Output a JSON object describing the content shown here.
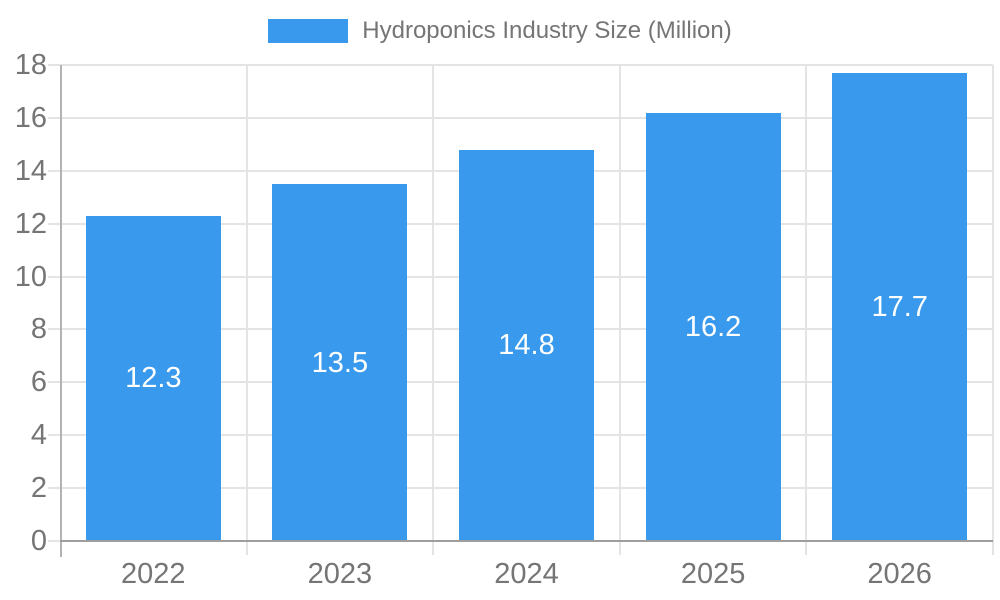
{
  "legend": {
    "series_label": "Hydroponics Industry Size (Million)"
  },
  "chart_data": {
    "type": "bar",
    "title": "",
    "series_name": "Hydroponics Industry Size (Million)",
    "categories": [
      "2022",
      "2023",
      "2024",
      "2025",
      "2026"
    ],
    "values": [
      12.3,
      13.5,
      14.8,
      16.2,
      17.7
    ],
    "value_labels": [
      "12.3",
      "13.5",
      "14.8",
      "16.2",
      "17.7"
    ],
    "xlabel": "",
    "ylabel": "",
    "ylim": [
      0,
      18
    ],
    "ytick_step": 2,
    "yticks": [
      0,
      2,
      4,
      6,
      8,
      10,
      12,
      14,
      16,
      18
    ],
    "grid": true,
    "legend_position": "top-center",
    "colors": {
      "bar": "#3999ED",
      "value_label": "#FFFFFF",
      "axis_text": "#757575",
      "legend_text": "#757575",
      "gridline": "#E4E4E4",
      "axis_line": "#B3B3B3",
      "baseline": "#9E9E9E",
      "background": "#FFFFFF"
    }
  }
}
